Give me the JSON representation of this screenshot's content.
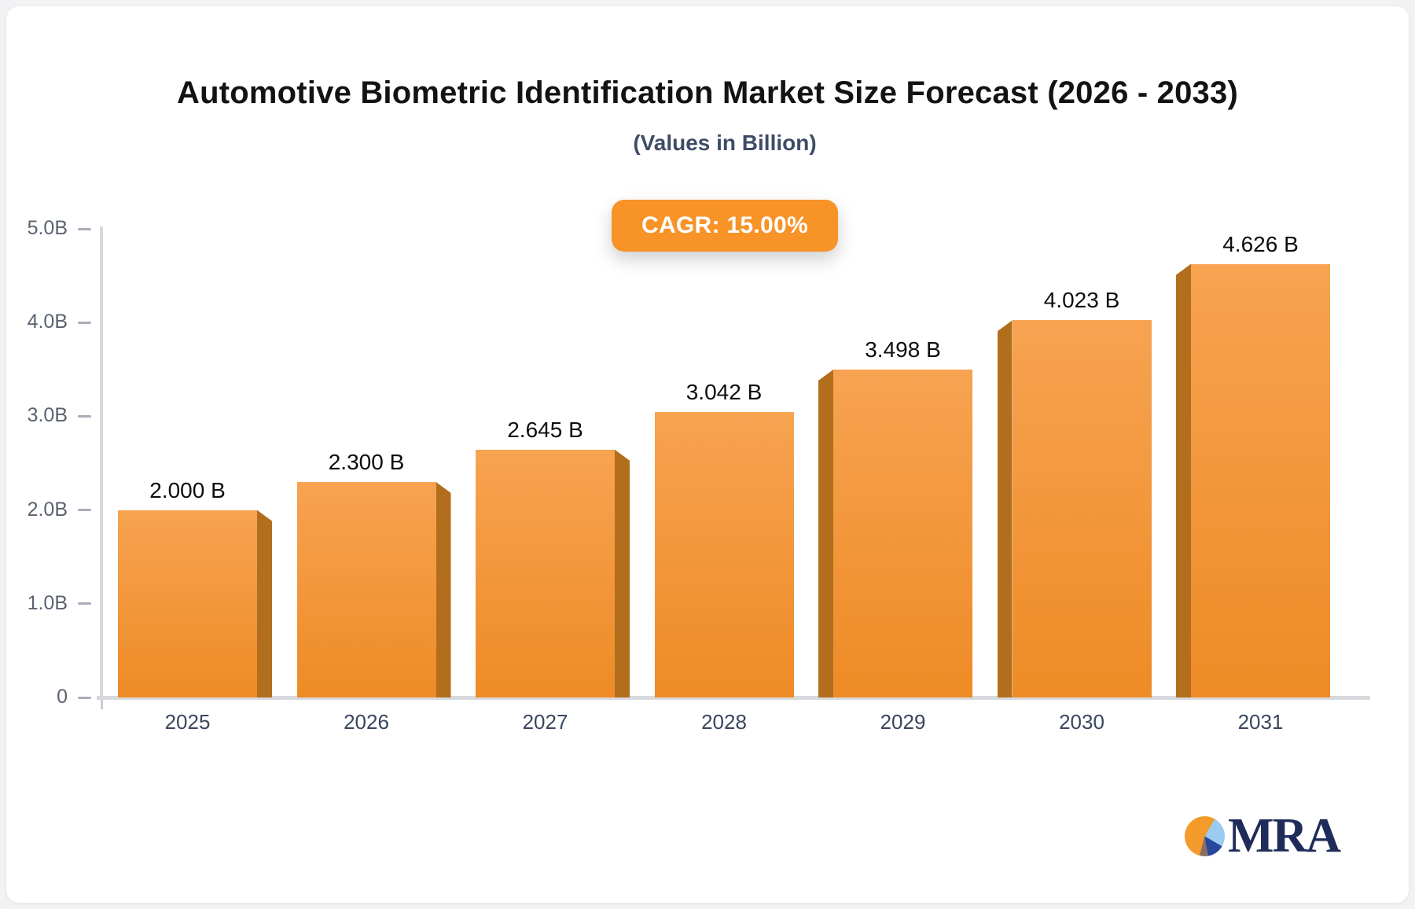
{
  "title": "Automotive Biometric Identification Market Size Forecast (2026 - 2033)",
  "subtitle": "(Values in Billion)",
  "badge": {
    "label": "CAGR: 15.00%",
    "color": "#F79327"
  },
  "chart_data": {
    "type": "bar",
    "categories": [
      "2025",
      "2026",
      "2027",
      "2028",
      "2029",
      "2030",
      "2031"
    ],
    "values": [
      2.0,
      2.3,
      2.645,
      3.042,
      3.498,
      4.023,
      4.626
    ],
    "bar_labels": [
      "2.000 B",
      "2.300 B",
      "2.645 B",
      "3.042 B",
      "3.498 B",
      "4.023 B",
      "4.626 B"
    ],
    "title": "Automotive Biometric Identification Market Size Forecast (2026 - 2033)",
    "subtitle": "(Values in Billion)",
    "xlabel": "",
    "ylabel": "",
    "ylim": [
      0,
      5
    ],
    "yticks": [
      {
        "value": 5.0,
        "label": "5.0B"
      },
      {
        "value": 4.0,
        "label": "4.0B"
      },
      {
        "value": 3.0,
        "label": "3.0B"
      },
      {
        "value": 2.0,
        "label": "2.0B"
      },
      {
        "value": 1.0,
        "label": "1.0B"
      },
      {
        "value": 0.0,
        "label": "0"
      }
    ],
    "grid": false,
    "legend": "none",
    "bar_style_3d": true,
    "colors": {
      "bar_face_top": "#F7A351",
      "bar_face_bottom": "#EE8B26",
      "bar_side": "#B26E1D",
      "axis_line": "#d8d9dd",
      "tick_text": "#5a6270",
      "category_text": "#3a465e",
      "value_text": "#0e0e0e"
    }
  },
  "logo": {
    "text": "MRA",
    "text_color": "#1f2c5a",
    "pie_slices": [
      {
        "name": "orange",
        "color": "#F49B2B"
      },
      {
        "name": "light-blue",
        "color": "#9BCBEE"
      },
      {
        "name": "navy",
        "color": "#26479D"
      },
      {
        "name": "brown",
        "color": "#8C6E60"
      }
    ]
  }
}
